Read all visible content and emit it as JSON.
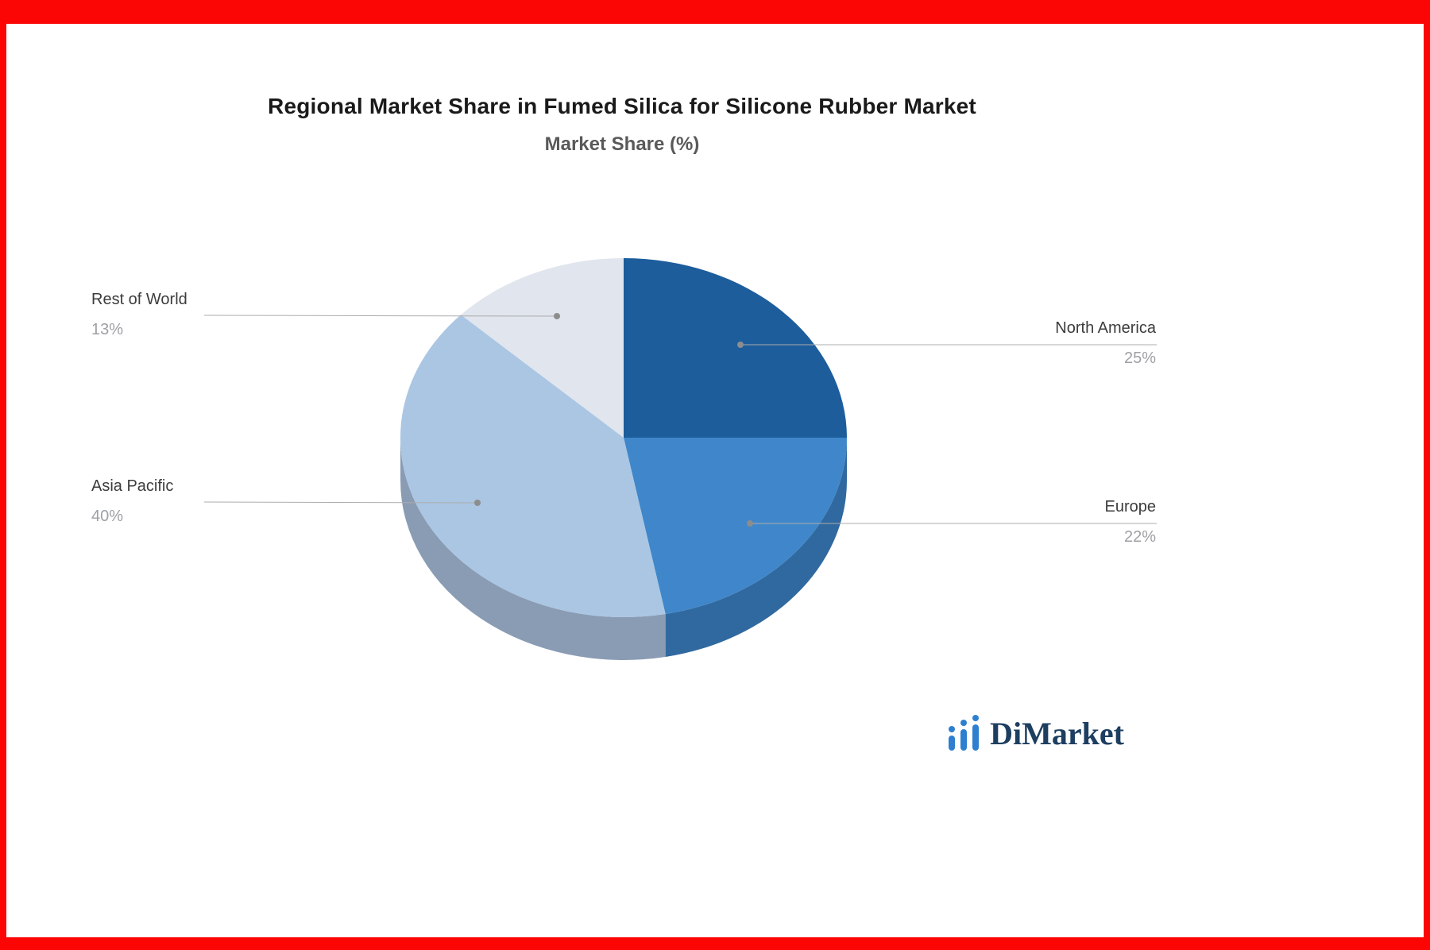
{
  "header": {
    "title": "Regional Market Share in Fumed Silica for Silicone Rubber Market",
    "subtitle": "Market Share (%)"
  },
  "chart_data": {
    "type": "pie",
    "title": "Regional Market Share in Fumed Silica for Silicone Rubber Market",
    "subtitle": "Market Share (%)",
    "effect": "3d",
    "direction": "clockwise",
    "start_angle_deg": 0,
    "legend_position": "none",
    "labels_position": "callout",
    "categories": [
      "North America",
      "Europe",
      "Asia Pacific",
      "Rest of World"
    ],
    "values": [
      25,
      22,
      40,
      13
    ],
    "slices": [
      {
        "label": "North America",
        "value": 25,
        "pct_text": "25%",
        "color": "#1d5d9c",
        "depth_color": "#174a7d"
      },
      {
        "label": "Europe",
        "value": 22,
        "pct_text": "22%",
        "color": "#3f87ca",
        "depth_color": "#30699f"
      },
      {
        "label": "Asia Pacific",
        "value": 40,
        "pct_text": "40%",
        "color": "#aac6e3",
        "depth_color": "#8a9cb4"
      },
      {
        "label": "Rest of World",
        "value": 13,
        "pct_text": "13%",
        "color": "#e0e5ee",
        "depth_color": "#b9bec9"
      }
    ]
  },
  "logo": {
    "text": "DiMarket",
    "text_color": "#1d3e60",
    "icon_color": "#2e7fd0"
  },
  "frame": {
    "border_color": "#fb0505"
  }
}
